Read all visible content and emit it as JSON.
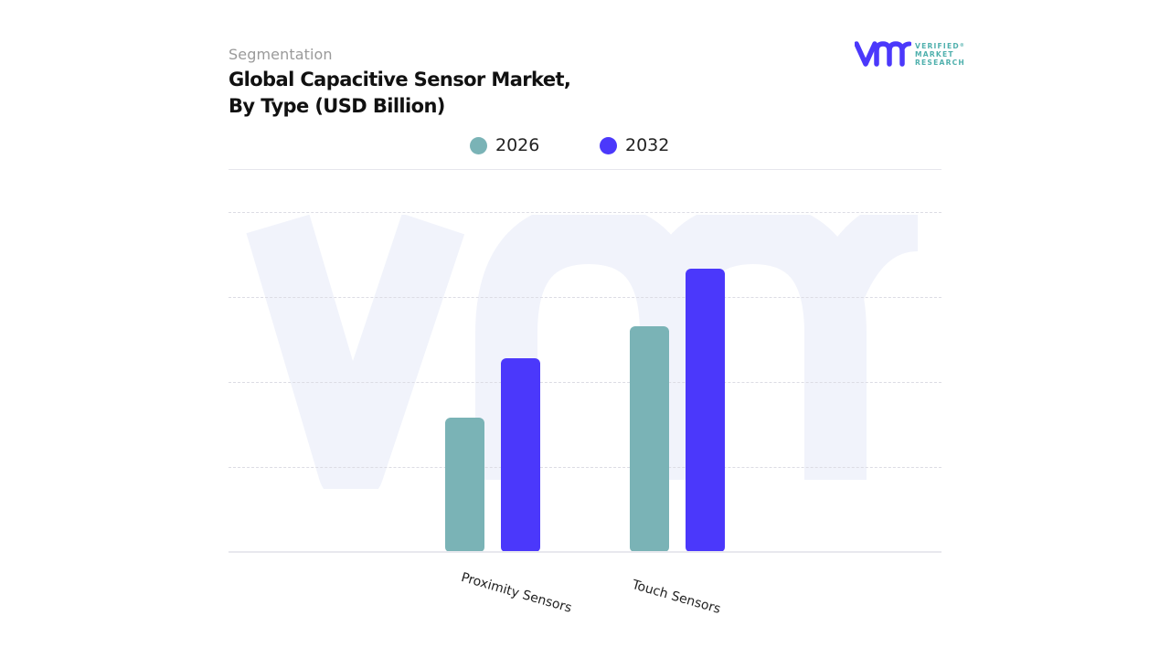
{
  "header": {
    "subtitle": "Segmentation",
    "title_line1": "Global Capacitive Sensor Market,",
    "title_line2": "By Type (USD Billion)"
  },
  "logo": {
    "mark": "vmr",
    "line1": "VERIFIED",
    "line2": "MARKET",
    "line3": "RESEARCH",
    "registered": "®"
  },
  "legend": [
    {
      "label": "2026",
      "color": "#7ab3b6"
    },
    {
      "label": "2032",
      "color": "#4b38fb"
    }
  ],
  "colors": {
    "series_2026": "#7ab3b6",
    "series_2032": "#4b38fb",
    "watermark": "#f1f3fb",
    "grid": "#dcdce4"
  },
  "chart_data": {
    "type": "bar",
    "title": "Global Capacitive Sensor Market, By Type (USD Billion)",
    "subtitle": "Segmentation",
    "categories": [
      "Proximity Sensors",
      "Touch Sensors"
    ],
    "series": [
      {
        "name": "2026",
        "values": [
          1.58,
          2.66
        ],
        "color": "#7ab3b6"
      },
      {
        "name": "2032",
        "values": [
          2.28,
          3.33
        ],
        "color": "#4b38fb"
      }
    ],
    "xlabel": "",
    "ylabel": "USD Billion",
    "ylim": [
      0,
      4.5
    ],
    "y_ticks_shown": false,
    "gridlines": [
      1,
      2,
      3,
      4
    ],
    "grid": true,
    "legend_position": "top-center",
    "x_tick_rotation_deg": 16,
    "note": "No numeric axis labels are shown; values are estimated relative bar heights in gridline units."
  }
}
